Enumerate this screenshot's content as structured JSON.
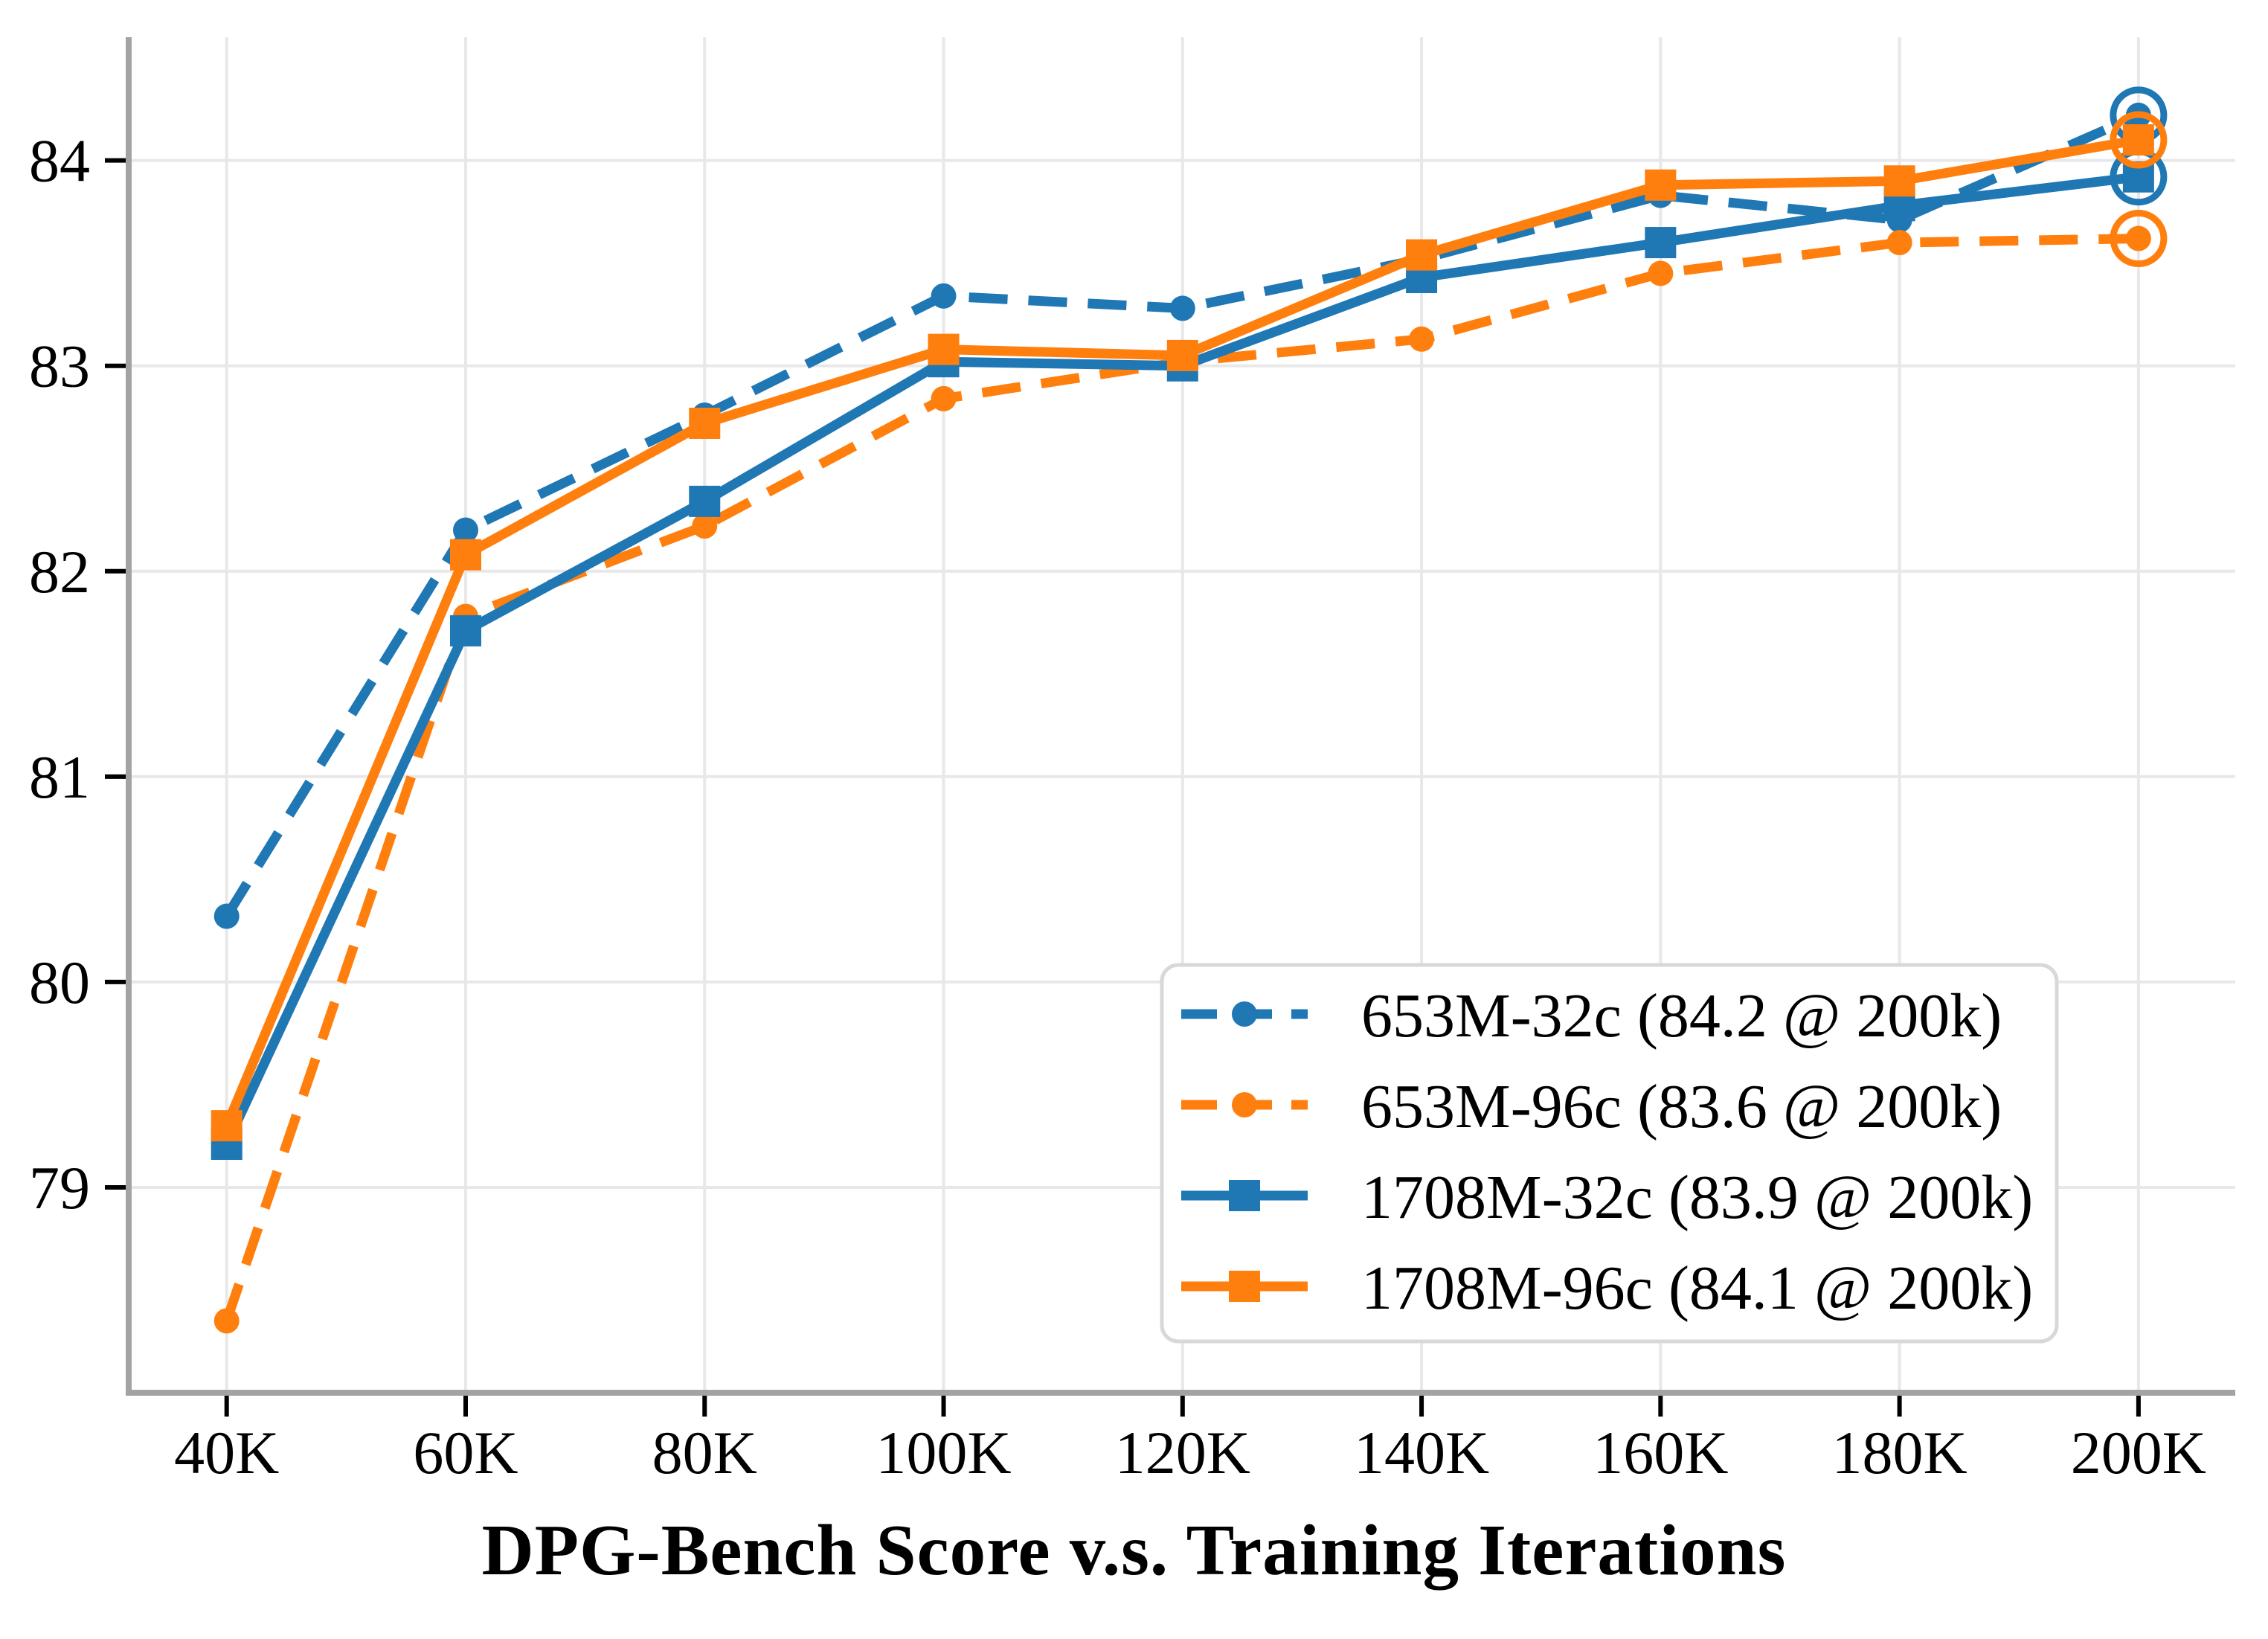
{
  "chart_data": {
    "type": "line",
    "title": "DPG-Bench Score v.s. Training Iterations",
    "xlabel": "",
    "ylabel": "",
    "x": [
      40,
      60,
      80,
      100,
      120,
      140,
      160,
      180,
      200
    ],
    "x_tick_labels": [
      "40K",
      "60K",
      "80K",
      "100K",
      "120K",
      "140K",
      "160K",
      "180K",
      "200K"
    ],
    "y_ticks": [
      79,
      80,
      81,
      82,
      83,
      84
    ],
    "y_tick_labels": [
      "79",
      "80",
      "81",
      "82",
      "83",
      "84"
    ],
    "xlim": [
      31.8,
      208.1
    ],
    "ylim": [
      78.0,
      84.6
    ],
    "grid": true,
    "legend_position": "lower-right-inside",
    "series": [
      {
        "name": "653M-32c",
        "legend_label": "653M-32c (84.2 @ 200k)",
        "color": "#1f77b4",
        "line_style": "dashed",
        "marker": "circle",
        "values": [
          80.32,
          82.2,
          82.76,
          83.34,
          83.28,
          83.52,
          83.83,
          83.71,
          84.22
        ],
        "final_value": 84.2,
        "final_ring": true
      },
      {
        "name": "653M-96c",
        "legend_label": "653M-96c (83.6 @ 200k)",
        "color": "#ff7f0e",
        "line_style": "dashed",
        "marker": "circle",
        "values": [
          78.35,
          81.78,
          82.22,
          82.84,
          83.02,
          83.13,
          83.45,
          83.6,
          83.62
        ],
        "final_value": 83.6,
        "final_ring": true
      },
      {
        "name": "1708M-32c",
        "legend_label": "1708M-32c (83.9 @ 200k)",
        "color": "#1f77b4",
        "line_style": "solid",
        "marker": "square",
        "values": [
          79.21,
          81.71,
          82.34,
          83.02,
          83.0,
          83.43,
          83.6,
          83.78,
          83.92
        ],
        "final_value": 83.9,
        "final_ring": true
      },
      {
        "name": "1708M-96c",
        "legend_label": "1708M-96c (84.1 @ 200k)",
        "color": "#ff7f0e",
        "line_style": "solid",
        "marker": "square",
        "values": [
          79.3,
          82.08,
          82.72,
          83.08,
          83.05,
          83.54,
          83.88,
          83.9,
          84.1
        ],
        "final_value": 84.1,
        "final_ring": true
      }
    ],
    "colors": {
      "blue": "#1f77b4",
      "orange": "#ff7f0e",
      "grid": "#e8e8e8",
      "spine": "#a3a3a3",
      "tick": "#000000",
      "legend_border": "#d8d8d8",
      "background": "#ffffff"
    }
  }
}
